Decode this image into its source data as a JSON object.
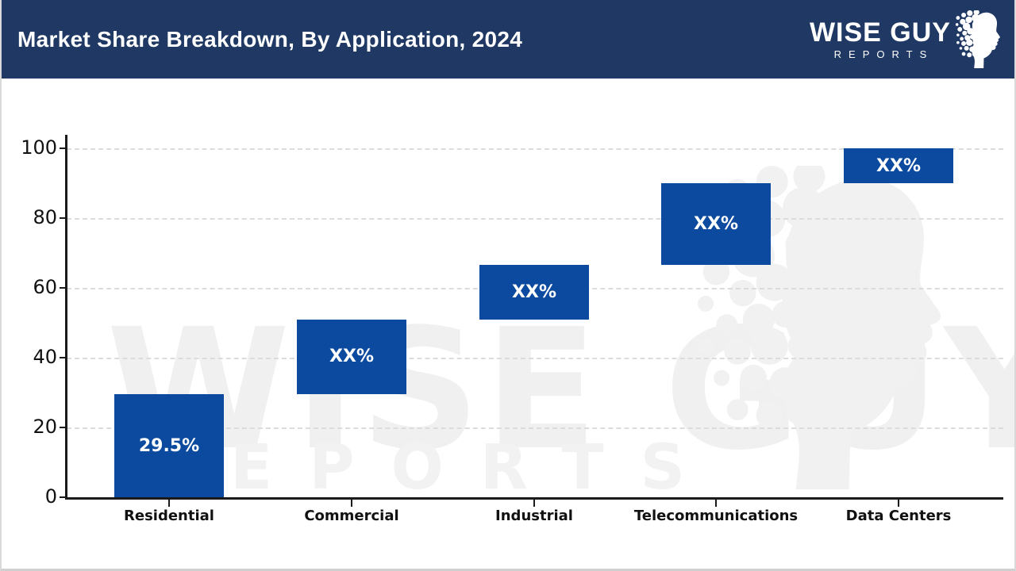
{
  "header": {
    "title": "Market Share Breakdown, By Application, 2024",
    "background": "#1f3864",
    "brand_line1": "WISE GUY",
    "brand_line2": "REPORTS"
  },
  "watermark": {
    "line1": "WISE GUY",
    "line2": "REPORTS"
  },
  "chart_data": {
    "type": "bar",
    "subtype": "waterfall",
    "title": "Market Share Breakdown, By Application, 2024",
    "categories": [
      "Residential",
      "Commercial",
      "Industrial",
      "Telecommunications",
      "Data Centers"
    ],
    "segments": [
      {
        "category": "Residential",
        "start": 0,
        "end": 29.5,
        "label": "29.5%"
      },
      {
        "category": "Commercial",
        "start": 29.5,
        "end": 51,
        "label": "XX%"
      },
      {
        "category": "Industrial",
        "start": 51,
        "end": 66.5,
        "label": "XX%"
      },
      {
        "category": "Telecommunications",
        "start": 66.5,
        "end": 90,
        "label": "XX%"
      },
      {
        "category": "Data Centers",
        "start": 90,
        "end": 100,
        "label": "XX%"
      }
    ],
    "y_ticks": [
      0,
      20,
      40,
      60,
      80,
      100
    ],
    "ylim": [
      0,
      105
    ],
    "xlabel": "",
    "ylabel": "",
    "grid": "horizontal-dashed",
    "legend": "none",
    "bar_color": "#0b4a9e",
    "bar_label_color": "#ffffff"
  }
}
